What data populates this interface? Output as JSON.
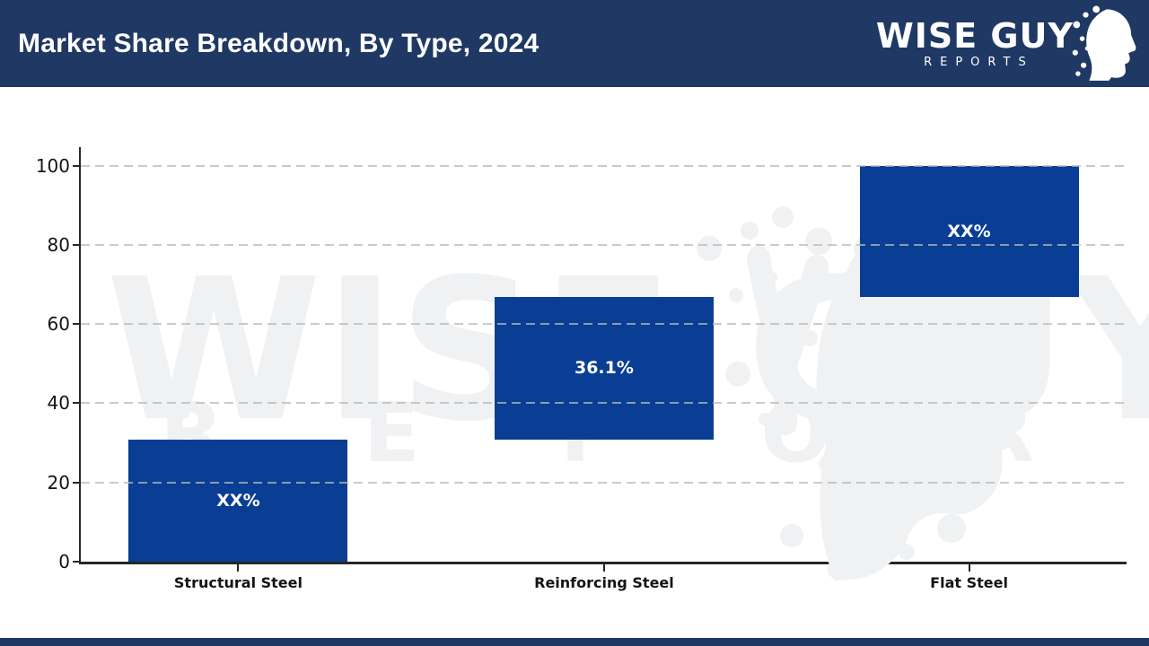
{
  "header": {
    "title": "Market Share Breakdown, By Type, 2024",
    "logo": {
      "wise_guy": "WISE GUY",
      "reports": "REPORTS"
    }
  },
  "watermark": {
    "wise_guy": "WISE GUY",
    "reports": "R E P O R T S"
  },
  "colors": {
    "header_bg": "#1f3864",
    "bar_blue": "#0a3e94",
    "bar_label": "#ffffff",
    "axis": "#262626",
    "gridline": "#c9c9c9",
    "watermark": "#f0f1f3"
  },
  "chart_data": {
    "type": "bar",
    "subtype": "floating_cumulative_bars",
    "title": "Market Share Breakdown, By Type, 2024",
    "categories": [
      "Structural Steel",
      "Reinforcing Steel",
      "Flat Steel"
    ],
    "bar_ranges": [
      [
        0,
        30.8
      ],
      [
        30.8,
        66.9
      ],
      [
        66.9,
        100
      ]
    ],
    "values": [
      30.8,
      36.1,
      33.1
    ],
    "bar_labels": [
      "XX%",
      "36.1%",
      "XX%"
    ],
    "xlabel": "",
    "ylabel": "",
    "ylim": [
      0,
      104.7
    ],
    "yticks": [
      0,
      20,
      40,
      60,
      80,
      100
    ],
    "grid": "horizontal dashed",
    "legend": "none",
    "bar_color": "#0a3e94",
    "label_color": "#ffffff"
  }
}
